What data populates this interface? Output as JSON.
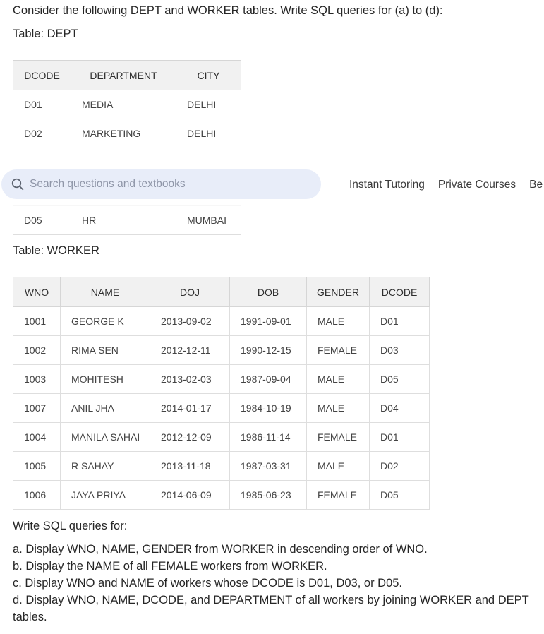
{
  "page": {
    "intro_text": "Consider the following DEPT and WORKER tables. Write SQL queries for (a) to (d):",
    "dept_table_label": "Table: DEPT",
    "worker_table_label": "Table: WORKER",
    "questions_heading": "Write SQL queries for:",
    "questions": {
      "a": "a. Display WNO, NAME, GENDER from WORKER in descending order of WNO.",
      "b": "b. Display the NAME of all FEMALE workers from WORKER.",
      "c": "c. Display WNO and NAME of workers whose DCODE is D01, D03, or D05.",
      "d": "d. Display WNO, NAME, DCODE, and DEPARTMENT of all workers by joining WORKER and DEPT tables."
    }
  },
  "search_bar": {
    "placeholder": "Search questions and textbooks",
    "icon": "magnifier-icon"
  },
  "nav": {
    "items": [
      {
        "label": "Instant Tutoring"
      },
      {
        "label": "Private Courses"
      },
      {
        "label": "Be"
      }
    ]
  },
  "dept_table": {
    "headers": [
      "DCODE",
      "DEPARTMENT",
      "CITY"
    ],
    "rows": [
      [
        "D01",
        "MEDIA",
        "DELHI"
      ],
      [
        "D02",
        "MARKETING",
        "DELHI"
      ],
      [
        "",
        "",
        ""
      ],
      [
        "",
        "",
        ""
      ],
      [
        "D05",
        "HR",
        "MUMBAI"
      ]
    ]
  },
  "worker_table": {
    "headers": [
      "WNO",
      "NAME",
      "DOJ",
      "DOB",
      "GENDER",
      "DCODE"
    ],
    "rows": [
      [
        "1001",
        "GEORGE K",
        "2013-09-02",
        "1991-09-01",
        "MALE",
        "D01"
      ],
      [
        "1002",
        "RIMA SEN",
        "2012-12-11",
        "1990-12-15",
        "FEMALE",
        "D03"
      ],
      [
        "1003",
        "MOHITESH",
        "2013-02-03",
        "1987-09-04",
        "MALE",
        "D05"
      ],
      [
        "1007",
        "ANIL JHA",
        "2014-01-17",
        "1984-10-19",
        "MALE",
        "D04"
      ],
      [
        "1004",
        "MANILA SAHAI",
        "2012-12-09",
        "1986-11-14",
        "FEMALE",
        "D01"
      ],
      [
        "1005",
        "R SAHAY",
        "2013-11-18",
        "1987-03-31",
        "MALE",
        "D02"
      ],
      [
        "1006",
        "JAYA PRIYA",
        "2014-06-09",
        "1985-06-23",
        "FEMALE",
        "D05"
      ]
    ]
  },
  "colors": {
    "search_pill_bg": "#e8edf9",
    "table_header_bg": "#f1f1f1",
    "table_border": "#dedede",
    "placeholder_text": "#8f96a8"
  }
}
